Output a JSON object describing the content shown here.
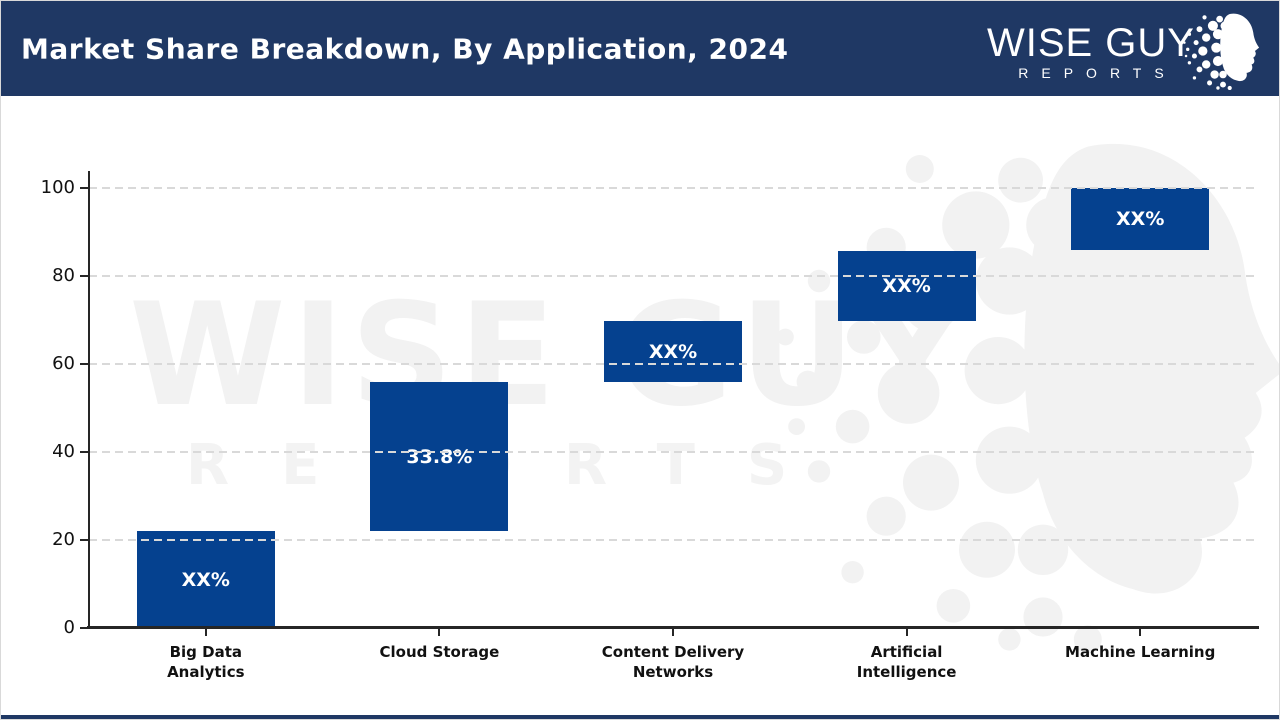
{
  "header": {
    "title": "Market Share Breakdown, By Application, 2024",
    "logo": {
      "name": "WISE GUY",
      "sub": "REPORTS"
    }
  },
  "watermark": {
    "name": "WISE GUY",
    "sub": "REPORTS"
  },
  "colors": {
    "header_bg": "#1f3864",
    "bar": "#05418f",
    "grid": "#d9d9d9",
    "axis": "#262626",
    "bar_label_text": "#ffffff",
    "watermark": "#f2f2f2"
  },
  "chart_data": {
    "type": "bar",
    "subtype": "waterfall",
    "title": "Market Share Breakdown, By Application, 2024",
    "xlabel": "",
    "ylabel": "",
    "ylim": [
      0,
      100
    ],
    "yticks": [
      0,
      20,
      40,
      60,
      80,
      100
    ],
    "grid": {
      "horizontal": true,
      "style": "dashed",
      "color": "#d9d9d9"
    },
    "legend": "none",
    "bar_color": "#05418f",
    "categories": [
      "Big Data Analytics",
      "Cloud Storage",
      "Content Delivery\nNetworks",
      "Artificial\nIntelligence",
      "Machine Learning"
    ],
    "segments": [
      {
        "start": 0,
        "end": 22,
        "value": 22,
        "label": "XX%"
      },
      {
        "start": 22,
        "end": 55.8,
        "value": 33.8,
        "label": "33.8%"
      },
      {
        "start": 55.8,
        "end": 69.8,
        "value": 14,
        "label": "XX%"
      },
      {
        "start": 69.8,
        "end": 85.8,
        "value": 16,
        "label": "XX%"
      },
      {
        "start": 85.8,
        "end": 100,
        "value": 14.2,
        "label": "XX%"
      }
    ]
  }
}
